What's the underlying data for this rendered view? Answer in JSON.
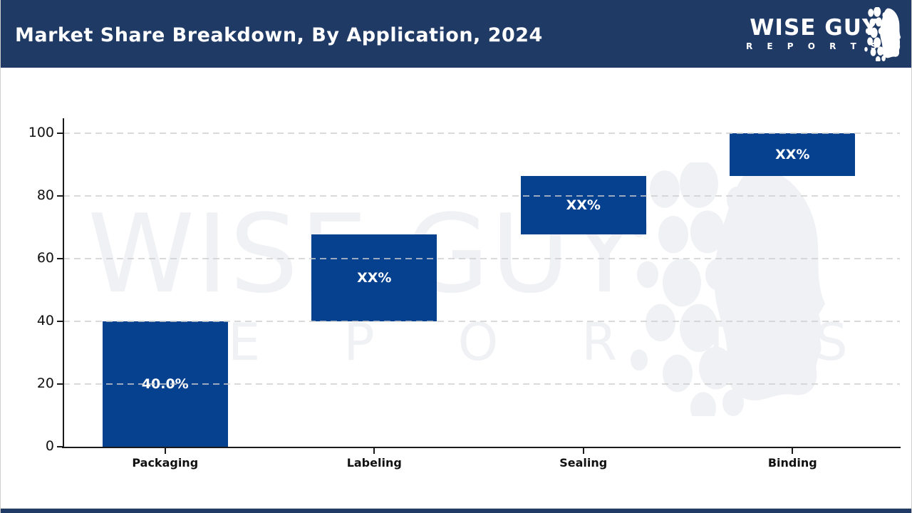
{
  "header": {
    "title": "Market Share Breakdown, By Application, 2024",
    "background_color": "#203a66",
    "text_color": "#ffffff",
    "brand": {
      "line1": "WISE GUY",
      "line2": "R E P O R T S"
    }
  },
  "watermark": {
    "line1": "WISE GUY",
    "line2": "R E P O R T S",
    "color": "#f0f1f4"
  },
  "chart_data": {
    "type": "bar",
    "subtype": "waterfall",
    "title": "Market Share Breakdown, By Application, 2024",
    "categories": [
      "Packaging",
      "Labeling",
      "Sealing",
      "Binding"
    ],
    "segments": [
      {
        "category": "Packaging",
        "start": 0,
        "end": 40,
        "label": "40.0%"
      },
      {
        "category": "Labeling",
        "start": 40,
        "end": 67.7,
        "label": "XX%"
      },
      {
        "category": "Sealing",
        "start": 67.7,
        "end": 86.3,
        "label": "XX%"
      },
      {
        "category": "Binding",
        "start": 86.3,
        "end": 100,
        "label": "XX%"
      }
    ],
    "ylim": [
      0,
      100
    ],
    "yticks": [
      0,
      20,
      40,
      60,
      80,
      100
    ],
    "xlabel": "",
    "ylabel": "",
    "grid": "horizontal-dashed",
    "legend": "none",
    "bar_color": "#06418f",
    "bar_label_color": "#ffffff",
    "axis_color": "#1a1a1a"
  }
}
